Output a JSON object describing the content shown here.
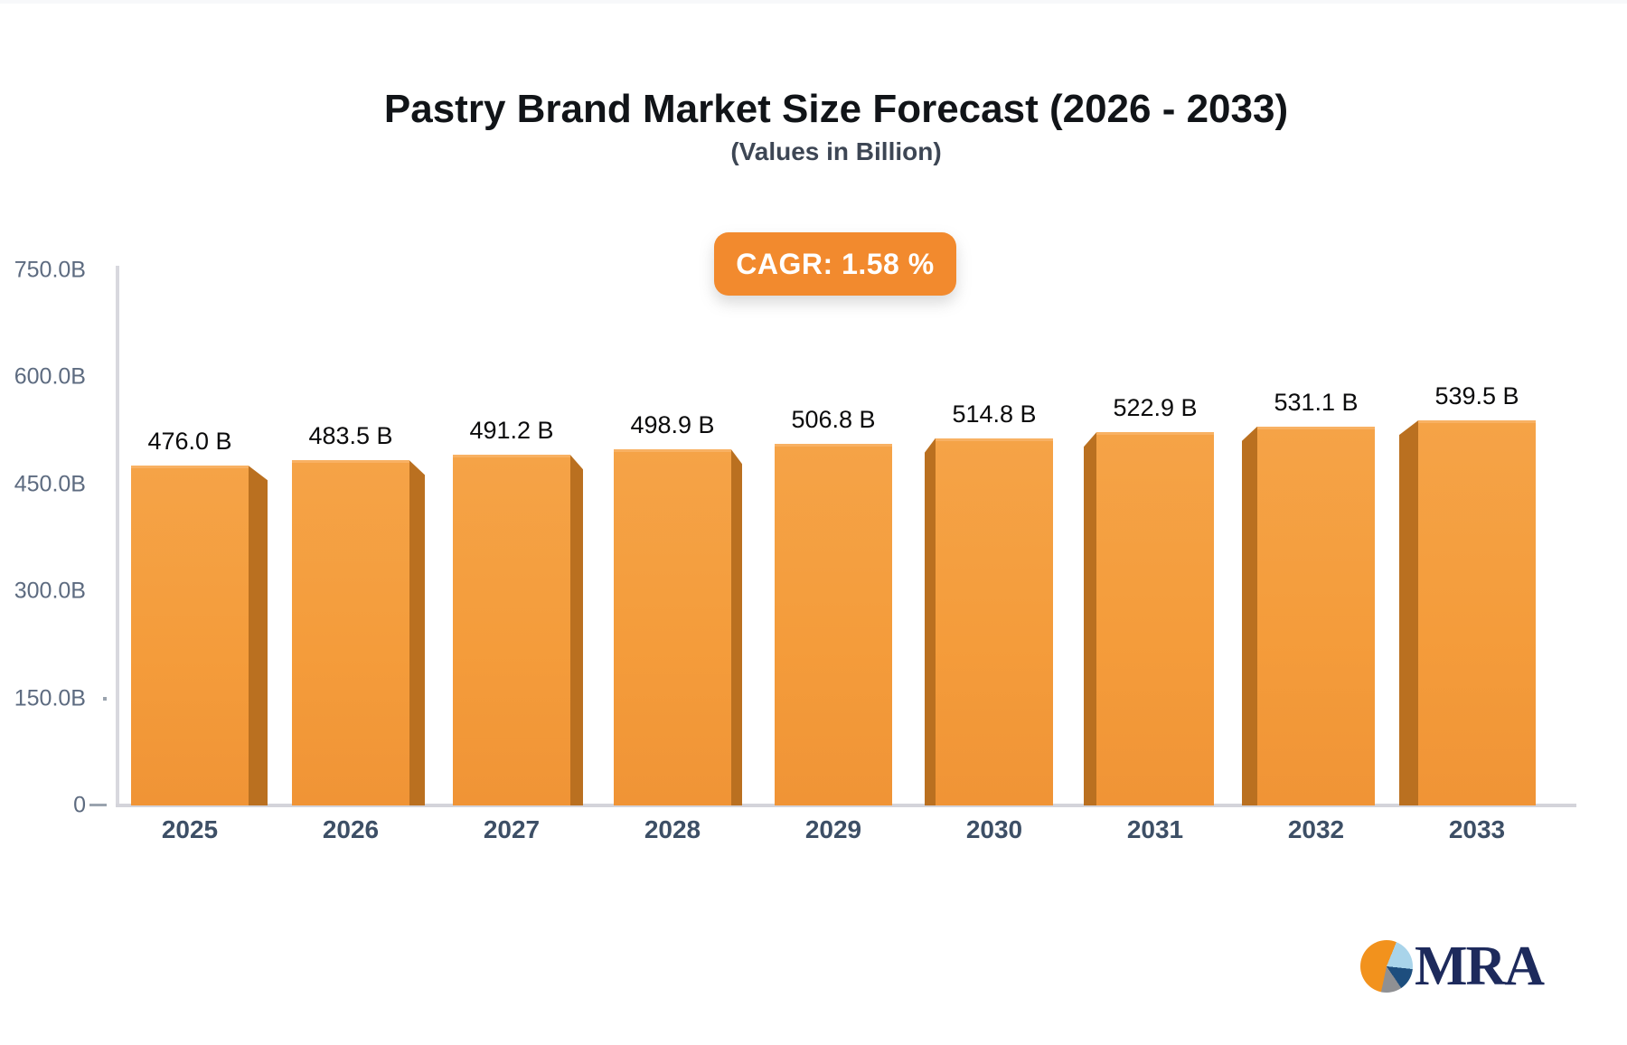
{
  "title": "Pastry Brand Market Size Forecast (2026 - 2033)",
  "subtitle": "(Values in Billion)",
  "badge": {
    "label": "CAGR: 1.58 %"
  },
  "chart_data": {
    "type": "bar",
    "title": "Pastry Brand Market Size Forecast (2026 - 2033)",
    "subtitle": "(Values in Billion)",
    "annotation": "CAGR: 1.58 %",
    "categories": [
      "2025",
      "2026",
      "2027",
      "2028",
      "2029",
      "2030",
      "2031",
      "2032",
      "2033"
    ],
    "values": [
      476.0,
      483.5,
      491.2,
      498.9,
      506.8,
      514.8,
      522.9,
      531.1,
      539.5
    ],
    "bar_labels": [
      "476.0 B",
      "483.5 B",
      "491.2 B",
      "498.9 B",
      "506.8 B",
      "514.8 B",
      "522.9 B",
      "531.1 B",
      "539.5 B"
    ],
    "xlabel": "",
    "ylabel": "",
    "ylim": [
      0,
      750
    ],
    "yticks": [
      {
        "value": 750,
        "label": "750.0B"
      },
      {
        "value": 600,
        "label": "600.0B"
      },
      {
        "value": 450,
        "label": "450.0B"
      },
      {
        "value": 300,
        "label": "300.0B"
      },
      {
        "value": 150,
        "label": "150.0B"
      },
      {
        "value": 0,
        "label": "0"
      }
    ],
    "grid": false,
    "legend": false,
    "bar_style": "3d-perspective",
    "colors": {
      "bar_front": "#f49c3b",
      "bar_front_highlight": "#f8b163",
      "bar_side": "#ba7020",
      "badge_background": "#f28a2e",
      "badge_text": "#ffffff",
      "axis_line": "#d6d6dc",
      "tick_text": "#5d6b80",
      "category_text": "#3d4f66",
      "value_text": "#0b0b0c",
      "title_text": "#111418"
    }
  },
  "logo": {
    "text": "MRA",
    "text_color": "#1d2a5c",
    "pie_colors": [
      "#f2921d",
      "#a9d4ea",
      "#1d4e7e",
      "#8f9093"
    ]
  }
}
